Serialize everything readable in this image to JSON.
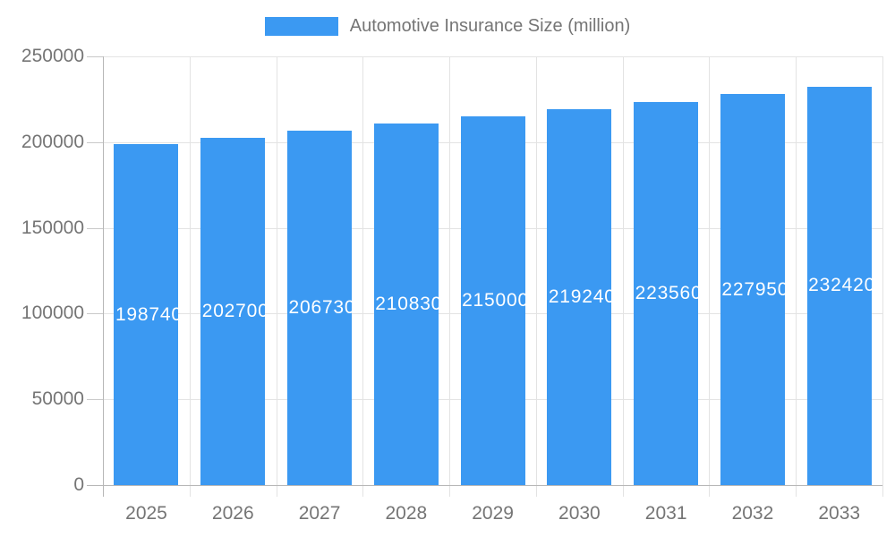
{
  "legend": {
    "label": "Automotive Insurance Size (million)",
    "swatch_color": "#3b99f2"
  },
  "chart_data": {
    "type": "bar",
    "title": "Automotive Insurance Size (million)",
    "categories": [
      "2025",
      "2026",
      "2027",
      "2028",
      "2029",
      "2030",
      "2031",
      "2032",
      "2033"
    ],
    "series": [
      {
        "name": "Automotive Insurance Size (million)",
        "values": [
          198740,
          202700,
          206730,
          210830,
          215000,
          219240,
          223560,
          227950,
          232420
        ]
      }
    ],
    "bar_labels": [
      "198740",
      "202700",
      "206730",
      "210830",
      "215000",
      "219240",
      "223560",
      "227950",
      "232420"
    ],
    "xlabel": "",
    "ylabel": "",
    "ylim": [
      0,
      250000
    ],
    "ytick_interval": 50000,
    "ytick_labels": [
      "0",
      "50000",
      "100000",
      "150000",
      "200000",
      "250000"
    ],
    "grid": true,
    "legend_position": "top-center",
    "colors": {
      "bar": "#3b99f2",
      "axis_text": "#757575",
      "bar_label_text": "#ffffff",
      "gridline": "#e3e3e3",
      "axis_line": "#b7b7b7",
      "background": "#ffffff"
    }
  }
}
